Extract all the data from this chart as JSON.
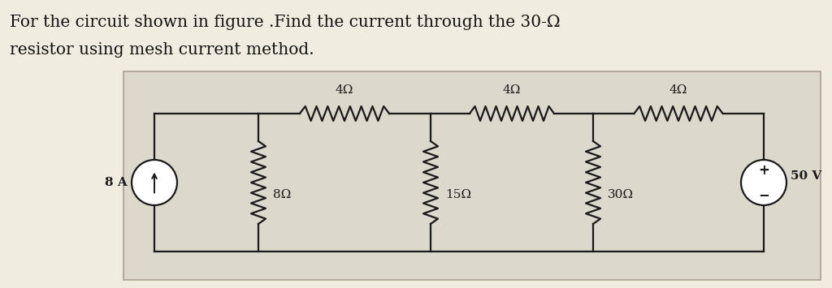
{
  "title_line1": "For the circuit shown in figure .Find the current through the 30-Ω",
  "title_line2": "resistor using mesh current method.",
  "page_bg": "#f0ece0",
  "circuit_bg": "#ddd8cc",
  "circuit_border": "#aaa090",
  "line_color": "#1a1a1a",
  "text_color": "#111111",
  "title_fontsize": 14.5,
  "resistors_top": [
    "4Ω",
    "4Ω",
    "4Ω"
  ],
  "resistors_mid": [
    "8Ω",
    "15Ω",
    "30Ω"
  ],
  "source_current": "8 A",
  "source_voltage": "50 V"
}
